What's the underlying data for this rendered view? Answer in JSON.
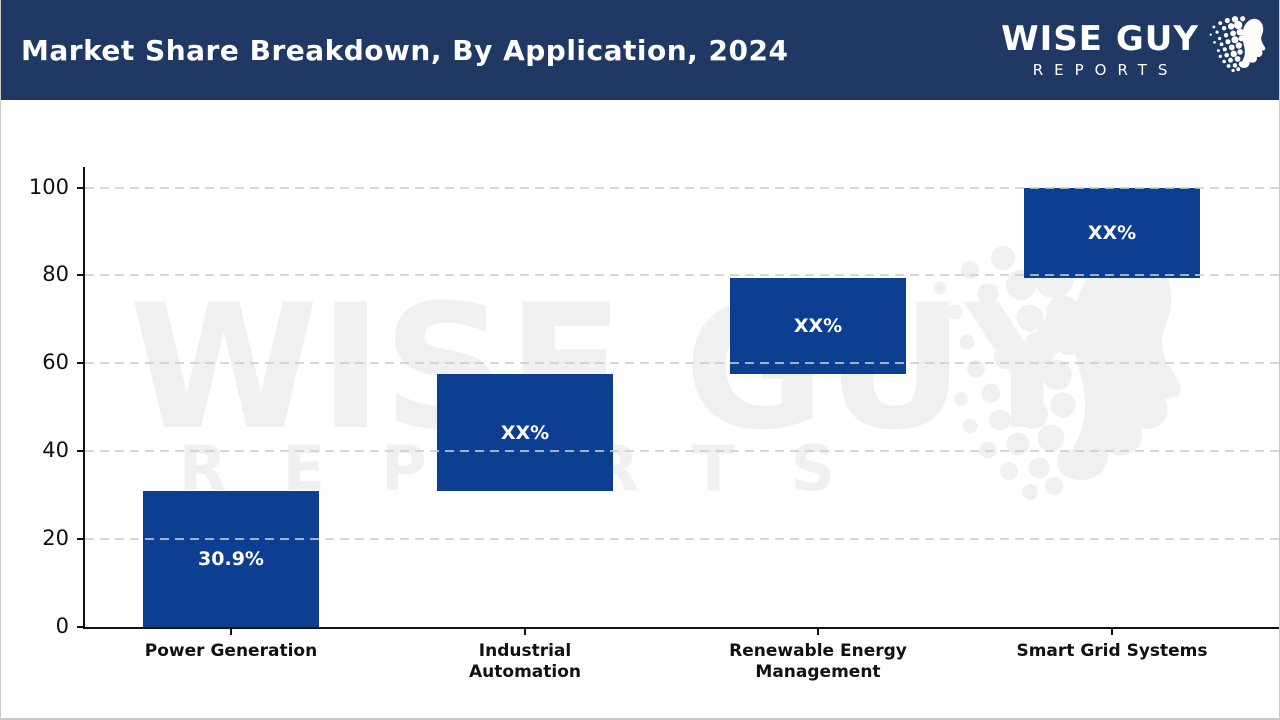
{
  "header": {
    "title": "Market Share Breakdown, By Application, 2024",
    "logo": {
      "name": "WISE GUY",
      "subtitle": "REPORTS"
    }
  },
  "watermark": {
    "name": "WISE GUY",
    "subtitle": "REPORTS"
  },
  "colors": {
    "header_bg": "#1f3864",
    "bar": "#0c3e92",
    "bar_label_text": "#ffffff",
    "axis": "#111111",
    "grid": "#cdcdcd",
    "watermark": "#f0f0f0",
    "logo_text": "#ffffff"
  },
  "chart_data": {
    "type": "bar",
    "variant": "waterfall",
    "title": "Market Share Breakdown, By Application, 2024",
    "categories": [
      "Power Generation",
      "Industrial\nAutomation",
      "Renewable Energy\nManagement",
      "Smart Grid Systems"
    ],
    "segments": [
      {
        "category": "Power Generation",
        "start": 0,
        "end": 30.9,
        "label": "30.9%"
      },
      {
        "category": "Industrial Automation",
        "start": 30.9,
        "end": 57.5,
        "label": "XX%"
      },
      {
        "category": "Renewable Energy Management",
        "start": 57.5,
        "end": 79.4,
        "label": "XX%"
      },
      {
        "category": "Smart Grid Systems",
        "start": 79.4,
        "end": 100,
        "label": "XX%"
      }
    ],
    "xlabel": "",
    "ylabel": "",
    "ylim": [
      0,
      100
    ],
    "yticks": [
      0,
      20,
      40,
      60,
      80,
      100
    ],
    "grid": "horizontal-dashed",
    "legend": null
  }
}
